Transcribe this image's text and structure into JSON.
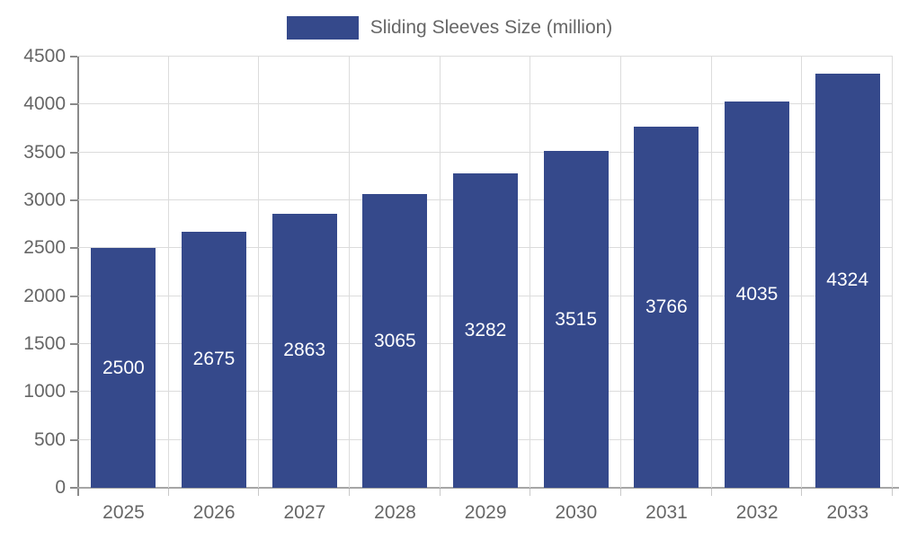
{
  "legend": {
    "label": "Sliding Sleeves Size (million)",
    "swatch_color": "#35498B"
  },
  "chart_data": {
    "type": "bar",
    "title": "",
    "xlabel": "",
    "ylabel": "",
    "categories": [
      "2025",
      "2026",
      "2027",
      "2028",
      "2029",
      "2030",
      "2031",
      "2032",
      "2033"
    ],
    "series": [
      {
        "name": "Sliding Sleeves Size (million)",
        "values": [
          2500,
          2675,
          2863,
          3065,
          3282,
          3515,
          3766,
          4035,
          4324
        ]
      }
    ],
    "value_labels": [
      "2500",
      "2675",
      "2863",
      "3065",
      "3282",
      "3515",
      "3766",
      "4035",
      "4324"
    ],
    "ylim": [
      0,
      4500
    ],
    "ytick_step": 500,
    "yticks": [
      0,
      500,
      1000,
      1500,
      2000,
      2500,
      3000,
      3500,
      4000,
      4500
    ],
    "grid": true,
    "legend_position": "top",
    "colors": {
      "bar": "#35498B",
      "bar_label": "#ffffff",
      "axis_text": "#666666",
      "gridline": "#dcdcdc",
      "y_axis_line": "#8a8a8a",
      "x_axis_line": "#a6a6a6"
    }
  }
}
